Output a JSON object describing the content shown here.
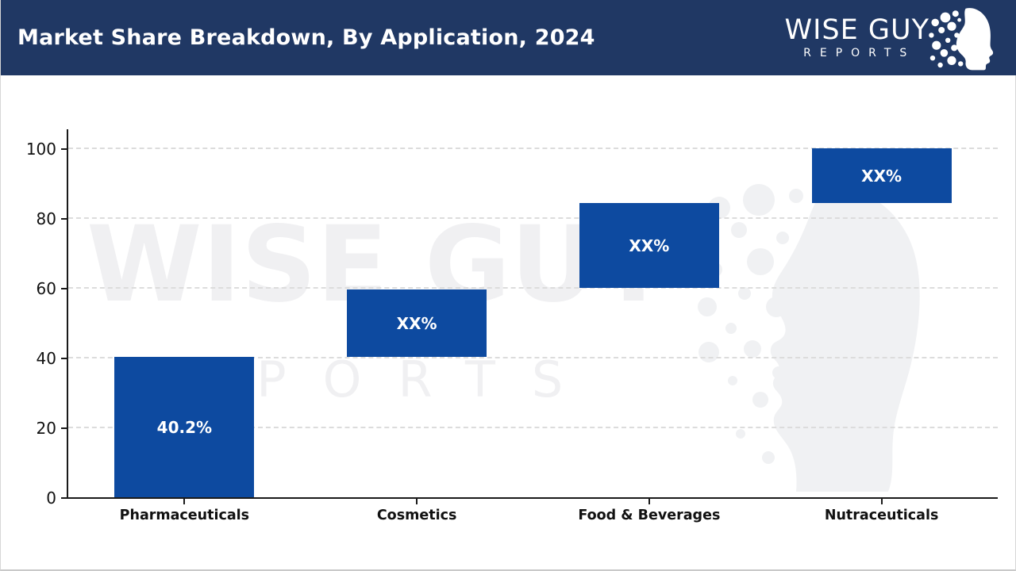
{
  "header": {
    "title": "Market Share Breakdown, By Application, 2024",
    "background_color": "#203864",
    "logo": {
      "line1": "WISE GUY",
      "line2": "REPORTS"
    }
  },
  "watermark": {
    "line1": "WISE GUY",
    "line2": "REPORTS"
  },
  "chart_data": {
    "type": "bar",
    "subtype": "waterfall-floating-bars",
    "title": "Market Share Breakdown, By Application, 2024",
    "categories": [
      "Pharmaceuticals",
      "Cosmetics",
      "Food & Beverages",
      "Nutraceuticals"
    ],
    "segments": [
      {
        "category": "Pharmaceuticals",
        "start": 0,
        "end": 40.2,
        "label": "40.2%"
      },
      {
        "category": "Cosmetics",
        "start": 40.2,
        "end": 59.5,
        "label": "XX%"
      },
      {
        "category": "Food & Beverages",
        "start": 60,
        "end": 84.3,
        "label": "XX%"
      },
      {
        "category": "Nutraceuticals",
        "start": 84.3,
        "end": 100,
        "label": "XX%"
      }
    ],
    "xlabel": "",
    "ylabel": "",
    "yticks": [
      0,
      20,
      40,
      60,
      80,
      100
    ],
    "ylim": [
      0,
      105
    ],
    "grid": "horizontal-dashed",
    "legend": "none",
    "bar_color": "#0d4aa0",
    "bar_label_color": "#ffffff",
    "grid_color": "#dcdcdc",
    "axis_color": "#1a1a1a"
  }
}
